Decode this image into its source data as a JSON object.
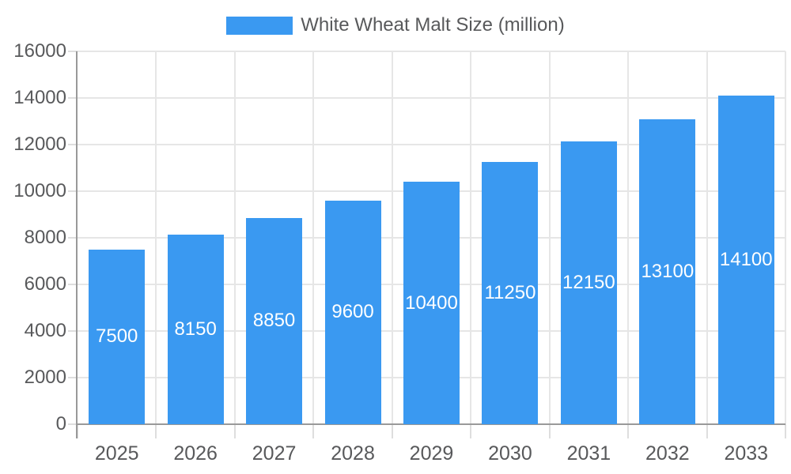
{
  "chart_data": {
    "type": "bar",
    "title": "White Wheat Malt Size (million)",
    "legend": {
      "label": "White Wheat Malt Size (million)",
      "position": "top-center"
    },
    "categories": [
      "2025",
      "2026",
      "2027",
      "2028",
      "2029",
      "2030",
      "2031",
      "2032",
      "2033"
    ],
    "series": [
      {
        "name": "White Wheat Malt Size (million)",
        "values": [
          7500,
          8150,
          8850,
          9600,
          10400,
          11250,
          12150,
          13100,
          14100
        ]
      }
    ],
    "xlabel": "",
    "ylabel": "",
    "ylim": [
      0,
      16000
    ],
    "yticks": [
      0,
      2000,
      4000,
      6000,
      8000,
      10000,
      12000,
      14000,
      16000
    ],
    "grid": "horizontal and vertical light gray gridlines",
    "value_labels": "white, centered inside bars",
    "colors": {
      "bar": "#3a99f1",
      "gridline": "#e6e6e6",
      "axis_line": "#999999",
      "tick_mark": "#dedede",
      "axis_text": "#58595b",
      "value_text": "#ffffff",
      "background": "#ffffff"
    }
  }
}
